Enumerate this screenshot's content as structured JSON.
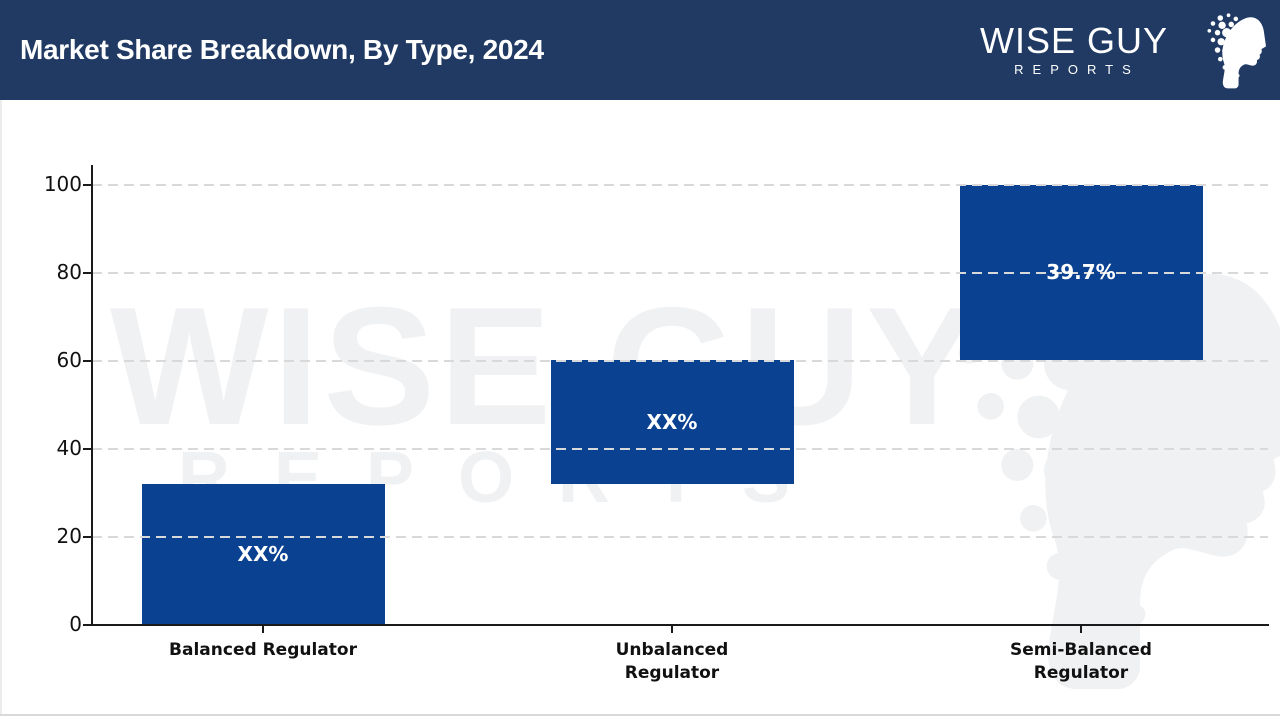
{
  "header": {
    "title": "Market Share Breakdown, By Type, 2024",
    "logo": {
      "line1": "WISE GUY",
      "line2": "REPORTS"
    }
  },
  "watermark": {
    "line1": "WISE GUY",
    "line2": "REPORTS"
  },
  "colors": {
    "header_bg": "#213A64",
    "bar": "#0A4191",
    "gridline": "#D9D9D9",
    "axis": "#1A1A1A",
    "tick_label": "#111111",
    "bar_label": "#FFFFFF",
    "watermark": "#F0F1F3"
  },
  "chart_data": {
    "type": "bar",
    "variant": "floating-segment-bars (stacked market-share breakdown)",
    "title": "Market Share Breakdown, By Type, 2024",
    "categories": [
      "Balanced Regulator",
      "Unbalanced Regulator",
      "Semi-Balanced Regulator"
    ],
    "category_label_lines": [
      "Balanced Regulator",
      "Unbalanced\nRegulator",
      "Semi-Balanced\nRegulator"
    ],
    "segments": [
      {
        "category": "Balanced Regulator",
        "start": 0,
        "end": 32,
        "label": "XX%"
      },
      {
        "category": "Unbalanced Regulator",
        "start": 32,
        "end": 60.3,
        "label": "XX%"
      },
      {
        "category": "Semi-Balanced Regulator",
        "start": 60.3,
        "end": 100,
        "label": "39.7%"
      }
    ],
    "xlabel": "",
    "ylabel": "",
    "yticks": [
      0,
      20,
      40,
      60,
      80,
      100
    ],
    "ylim": [
      0,
      105
    ],
    "grid": "horizontal dashed",
    "legend": "none"
  }
}
